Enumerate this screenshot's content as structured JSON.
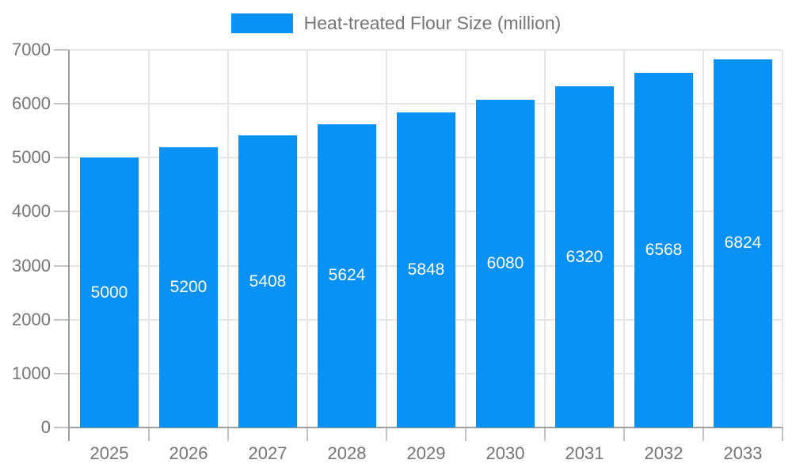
{
  "chart_data": {
    "type": "bar",
    "series_name": "Heat-treated Flour Size (million)",
    "categories": [
      "2025",
      "2026",
      "2027",
      "2028",
      "2029",
      "2030",
      "2031",
      "2032",
      "2033"
    ],
    "values": [
      5000,
      5200,
      5408,
      5624,
      5848,
      6080,
      6320,
      6568,
      6824
    ],
    "bar_labels": [
      "5000",
      "5200",
      "5408",
      "5624",
      "5848",
      "6080",
      "6320",
      "6568",
      "6824"
    ],
    "yticks": [
      0,
      1000,
      2000,
      3000,
      4000,
      5000,
      6000,
      7000
    ],
    "ytick_labels": [
      "0",
      "1000",
      "2000",
      "3000",
      "4000",
      "5000",
      "6000",
      "7000"
    ],
    "ylim": [
      0,
      7000
    ],
    "xlabel": "",
    "ylabel": "",
    "legend_position": "top",
    "grid": true,
    "colors": {
      "bar": "#0892f8",
      "bar_label_text": "#ffffff",
      "axis_text": "#757575",
      "legend_text": "#757575",
      "gridline": "#e6e6e6",
      "axis_line": "#9e9e9e",
      "tick": "#c4c4c4",
      "background": "#ffffff"
    }
  }
}
